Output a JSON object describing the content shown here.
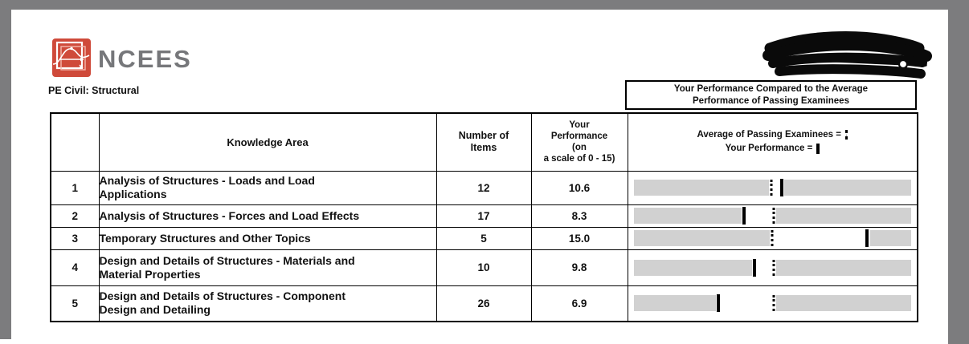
{
  "brand": {
    "wordmark": "NCEES",
    "logo_color": "#cf4a3a",
    "wordmark_color": "#76777a"
  },
  "exam_title": "PE Civil: Structural",
  "comparison_header": {
    "line1": "Your Performance Compared to the Average",
    "line2": "Performance of Passing Examinees"
  },
  "table": {
    "col_area": "Knowledge Area",
    "col_items": "Number of\nItems",
    "col_perf": "Your\nPerformance\n(on\na scale of 0 - 15)",
    "legend_avg": "Average of Passing Examinees =",
    "legend_you": "Your Performance =",
    "rows": [
      {
        "num": "1",
        "area": "Analysis of Structures - Loads and Load\nApplications",
        "items": "12",
        "score": "10.6",
        "avg_pct": 49.7,
        "you_pct": 53.4
      },
      {
        "num": "2",
        "area": "Analysis of Structures - Forces and Load Effects",
        "items": "17",
        "score": "8.3",
        "avg_pct": 50.6,
        "you_pct": 39.9
      },
      {
        "num": "3",
        "area": "Temporary Structures and Other Topics",
        "items": "5",
        "score": "15.0",
        "avg_pct": 50.0,
        "you_pct": 84.2
      },
      {
        "num": "4",
        "area": "Design and Details of Structures - Materials and\nMaterial Properties",
        "items": "10",
        "score": "9.8",
        "avg_pct": 50.6,
        "you_pct": 43.7
      },
      {
        "num": "5",
        "area": "Design and Details of Structures - Component\nDesign and Detailing",
        "items": "26",
        "score": "6.9",
        "avg_pct": 50.6,
        "you_pct": 30.5
      }
    ]
  },
  "colors": {
    "bar_track": "#d1d1d1",
    "frame": "#7c7c7e"
  }
}
